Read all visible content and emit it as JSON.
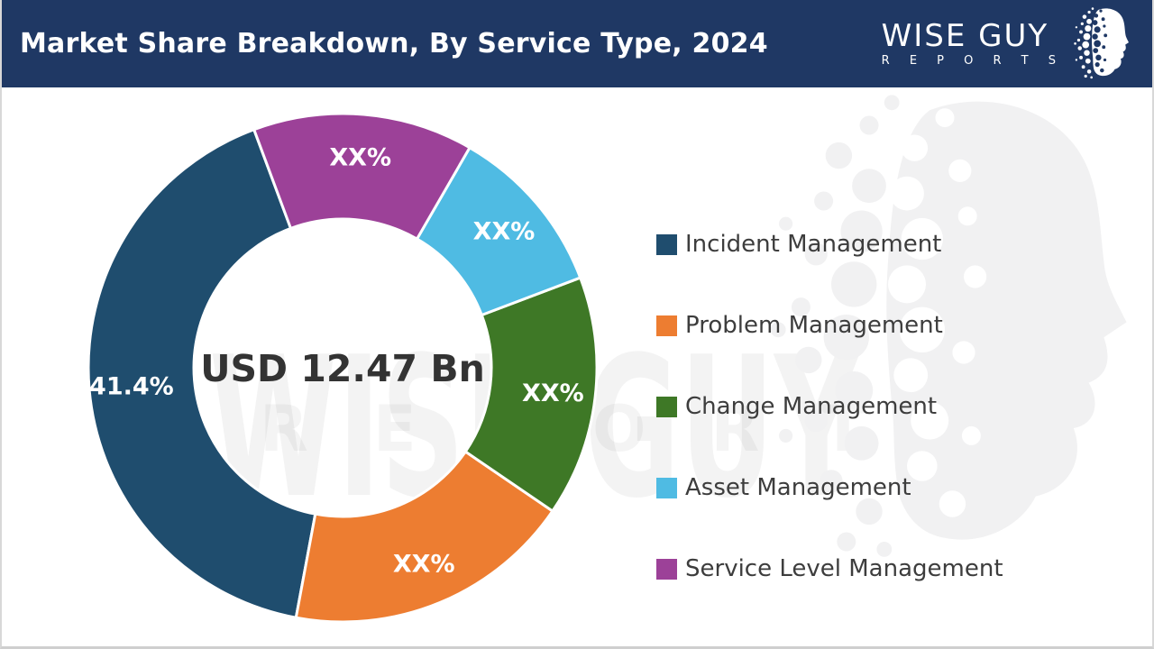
{
  "header": {
    "title": "Market Share Breakdown, By Service Type, 2024",
    "bg_color": "#1F3864",
    "logo": {
      "line1": "WISE GUY",
      "line2": "R E P O R T S"
    }
  },
  "watermark": {
    "line1": "WISE GUY",
    "line2": "REPORTS"
  },
  "chart_data": {
    "type": "pie",
    "subtype": "donut",
    "title": "Market Share Breakdown, By Service Type, 2024",
    "center_label": "USD 12.47 Bn",
    "startangle_deg": 110.4,
    "direction": "counterclockwise",
    "outer_radius": 282,
    "inner_radius": 165,
    "label_radius": 235,
    "slice_border_color": "#ffffff",
    "legend_position": "right",
    "slices": [
      {
        "name": "incident-management",
        "label": "Incident Management",
        "value_pct": 41.4,
        "display": "41.4%",
        "color": "#1F4D6E"
      },
      {
        "name": "problem-management",
        "label": "Problem Management",
        "value_pct": 18.4,
        "display": "XX%",
        "color": "#ED7D31"
      },
      {
        "name": "change-management",
        "label": "Change Management",
        "value_pct": 15.3,
        "display": "XX%",
        "color": "#3E7826"
      },
      {
        "name": "asset-management",
        "label": "Asset Management",
        "value_pct": 10.9,
        "display": "XX%",
        "color": "#4FBBE3"
      },
      {
        "name": "service-level-management",
        "label": "Service Level Management",
        "value_pct": 14.0,
        "display": "XX%",
        "color": "#9C4198"
      }
    ]
  }
}
